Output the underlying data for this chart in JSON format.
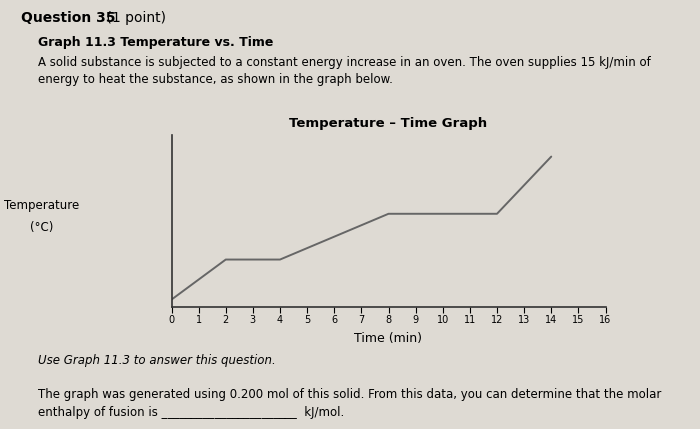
{
  "title_main_bold": "Question 35",
  "title_main_normal": " (1 point)",
  "subtitle_bold": "Graph 11.3 Temperature vs. Time",
  "subtitle_text": "A solid substance is subjected to a constant energy increase in an oven. The oven supplies 15 kJ/min of\nenergy to heat the substance, as shown in the graph below.",
  "graph_title": "Temperature – Time Graph",
  "xlabel": "Time (min)",
  "ylabel_line1": "Temperature",
  "ylabel_line2": "(°C)",
  "x_ticks": [
    0,
    1,
    2,
    3,
    4,
    5,
    6,
    7,
    8,
    9,
    10,
    11,
    12,
    13,
    14,
    15,
    16
  ],
  "x_min": 0,
  "x_max": 16,
  "line_x": [
    0,
    2,
    4,
    8,
    12,
    14
  ],
  "line_y": [
    0,
    28,
    28,
    60,
    60,
    100
  ],
  "line_color": "#666666",
  "line_width": 1.4,
  "footer_italic": "Use Graph 11.3 to answer this question.",
  "footer_text": "The graph was generated using 0.200 mol of this solid. From this data, you can determine that the molar\nenthalpy of fusion is _______________________  kJ/mol.",
  "bg_color": "#dedad3",
  "axes_bg": "#dedad3",
  "fig_width": 7.0,
  "fig_height": 4.29
}
